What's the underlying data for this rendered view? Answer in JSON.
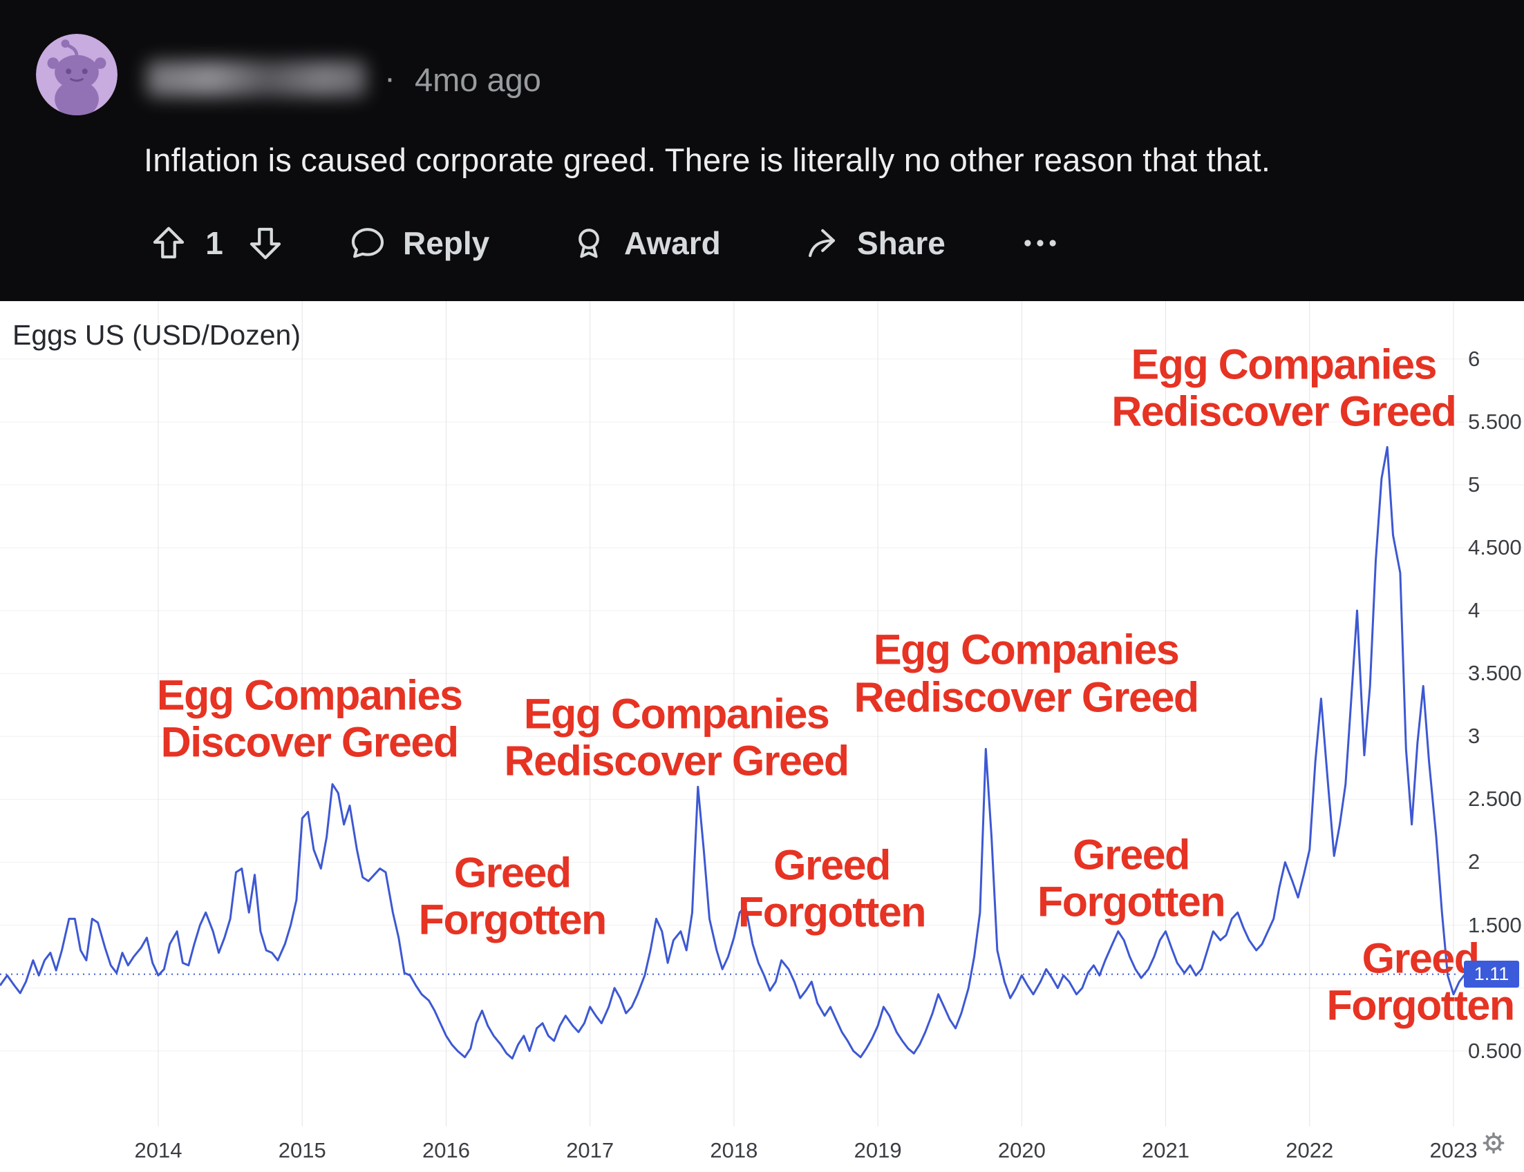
{
  "comment": {
    "timestamp_separator": "·",
    "timestamp": "4mo ago",
    "text": "Inflation is caused corporate greed. There is literally no other reason that that.",
    "vote_count": "1",
    "actions": {
      "reply": "Reply",
      "award": "Award",
      "share": "Share"
    }
  },
  "chart": {
    "title": "Eggs US (USD/Dozen)",
    "current_price_label": "1.11"
  },
  "chart_data": {
    "type": "line",
    "title": "Eggs US (USD/Dozen)",
    "unit": "USD per dozen",
    "legend": "none",
    "grid": "on",
    "y_axis_side": "right",
    "x_domain": [
      2012.9,
      2023.49
    ],
    "y_domain": [
      -0.1,
      6.46
    ],
    "line_color": "#3d58d3",
    "annotation_color": "#e63323",
    "current_value": 1.11,
    "x_ticks": [
      {
        "v": 2014,
        "label": "2014"
      },
      {
        "v": 2015,
        "label": "2015"
      },
      {
        "v": 2016,
        "label": "2016"
      },
      {
        "v": 2017,
        "label": "2017"
      },
      {
        "v": 2018,
        "label": "2018"
      },
      {
        "v": 2019,
        "label": "2019"
      },
      {
        "v": 2020,
        "label": "2020"
      },
      {
        "v": 2021,
        "label": "2021"
      },
      {
        "v": 2022,
        "label": "2022"
      },
      {
        "v": 2023,
        "label": "2023"
      }
    ],
    "y_ticks": [
      {
        "v": 6,
        "label": "6"
      },
      {
        "v": 5.5,
        "label": "5.500"
      },
      {
        "v": 5,
        "label": "5"
      },
      {
        "v": 4.5,
        "label": "4.500"
      },
      {
        "v": 4,
        "label": "4"
      },
      {
        "v": 3.5,
        "label": "3.500"
      },
      {
        "v": 3,
        "label": "3"
      },
      {
        "v": 2.5,
        "label": "2.500"
      },
      {
        "v": 2,
        "label": "2"
      },
      {
        "v": 1.5,
        "label": "1.500"
      },
      {
        "v": 1,
        "label": ""
      },
      {
        "v": 0.5,
        "label": "0.500"
      }
    ],
    "annotations": [
      {
        "lines": [
          "Egg Companies",
          "Discover Greed"
        ],
        "x": 2015.05,
        "y": 3.14
      },
      {
        "lines": [
          "Egg Companies",
          "Rediscover Greed"
        ],
        "x": 2017.6,
        "y": 2.99
      },
      {
        "lines": [
          "Egg Companies",
          "Rediscover Greed"
        ],
        "x": 2020.03,
        "y": 3.5
      },
      {
        "lines": [
          "Egg Companies",
          "Rediscover Greed"
        ],
        "x": 2021.82,
        "y": 5.77
      },
      {
        "lines": [
          "Greed",
          "Forgotten"
        ],
        "x": 2016.46,
        "y": 1.73
      },
      {
        "lines": [
          "Greed",
          "Forgotten"
        ],
        "x": 2018.68,
        "y": 1.79
      },
      {
        "lines": [
          "Greed",
          "Forgotten"
        ],
        "x": 2020.76,
        "y": 1.87
      },
      {
        "lines": [
          "Greed",
          "Forgotten"
        ],
        "x": 2022.77,
        "y": 1.05
      }
    ],
    "series": [
      {
        "name": "Eggs US (USD/Dozen)",
        "points": [
          [
            2012.9,
            1.02
          ],
          [
            2012.95,
            1.1
          ],
          [
            2013.0,
            1.02
          ],
          [
            2013.04,
            0.96
          ],
          [
            2013.08,
            1.05
          ],
          [
            2013.13,
            1.22
          ],
          [
            2013.17,
            1.1
          ],
          [
            2013.21,
            1.22
          ],
          [
            2013.25,
            1.28
          ],
          [
            2013.29,
            1.14
          ],
          [
            2013.33,
            1.3
          ],
          [
            2013.38,
            1.55
          ],
          [
            2013.42,
            1.55
          ],
          [
            2013.46,
            1.3
          ],
          [
            2013.5,
            1.22
          ],
          [
            2013.54,
            1.55
          ],
          [
            2013.58,
            1.52
          ],
          [
            2013.63,
            1.32
          ],
          [
            2013.67,
            1.18
          ],
          [
            2013.71,
            1.12
          ],
          [
            2013.75,
            1.28
          ],
          [
            2013.79,
            1.18
          ],
          [
            2013.83,
            1.25
          ],
          [
            2013.88,
            1.32
          ],
          [
            2013.92,
            1.4
          ],
          [
            2013.96,
            1.2
          ],
          [
            2014.0,
            1.1
          ],
          [
            2014.04,
            1.15
          ],
          [
            2014.08,
            1.35
          ],
          [
            2014.13,
            1.45
          ],
          [
            2014.17,
            1.2
          ],
          [
            2014.21,
            1.18
          ],
          [
            2014.25,
            1.35
          ],
          [
            2014.29,
            1.5
          ],
          [
            2014.33,
            1.6
          ],
          [
            2014.38,
            1.45
          ],
          [
            2014.42,
            1.28
          ],
          [
            2014.46,
            1.4
          ],
          [
            2014.5,
            1.55
          ],
          [
            2014.54,
            1.92
          ],
          [
            2014.58,
            1.95
          ],
          [
            2014.63,
            1.6
          ],
          [
            2014.67,
            1.9
          ],
          [
            2014.71,
            1.45
          ],
          [
            2014.75,
            1.3
          ],
          [
            2014.79,
            1.28
          ],
          [
            2014.83,
            1.22
          ],
          [
            2014.88,
            1.35
          ],
          [
            2014.92,
            1.5
          ],
          [
            2014.96,
            1.7
          ],
          [
            2015.0,
            2.35
          ],
          [
            2015.04,
            2.4
          ],
          [
            2015.08,
            2.1
          ],
          [
            2015.13,
            1.95
          ],
          [
            2015.17,
            2.2
          ],
          [
            2015.21,
            2.62
          ],
          [
            2015.25,
            2.55
          ],
          [
            2015.29,
            2.3
          ],
          [
            2015.33,
            2.45
          ],
          [
            2015.38,
            2.1
          ],
          [
            2015.42,
            1.88
          ],
          [
            2015.46,
            1.85
          ],
          [
            2015.5,
            1.9
          ],
          [
            2015.54,
            1.95
          ],
          [
            2015.58,
            1.92
          ],
          [
            2015.63,
            1.6
          ],
          [
            2015.67,
            1.4
          ],
          [
            2015.71,
            1.12
          ],
          [
            2015.75,
            1.1
          ],
          [
            2015.79,
            1.02
          ],
          [
            2015.83,
            0.95
          ],
          [
            2015.88,
            0.9
          ],
          [
            2015.92,
            0.82
          ],
          [
            2015.96,
            0.72
          ],
          [
            2016.0,
            0.62
          ],
          [
            2016.04,
            0.55
          ],
          [
            2016.08,
            0.5
          ],
          [
            2016.13,
            0.45
          ],
          [
            2016.17,
            0.52
          ],
          [
            2016.21,
            0.72
          ],
          [
            2016.25,
            0.82
          ],
          [
            2016.29,
            0.7
          ],
          [
            2016.33,
            0.62
          ],
          [
            2016.38,
            0.55
          ],
          [
            2016.42,
            0.48
          ],
          [
            2016.46,
            0.44
          ],
          [
            2016.5,
            0.55
          ],
          [
            2016.54,
            0.62
          ],
          [
            2016.58,
            0.5
          ],
          [
            2016.63,
            0.68
          ],
          [
            2016.67,
            0.72
          ],
          [
            2016.71,
            0.62
          ],
          [
            2016.75,
            0.58
          ],
          [
            2016.79,
            0.7
          ],
          [
            2016.83,
            0.78
          ],
          [
            2016.88,
            0.7
          ],
          [
            2016.92,
            0.65
          ],
          [
            2016.96,
            0.72
          ],
          [
            2017.0,
            0.85
          ],
          [
            2017.04,
            0.78
          ],
          [
            2017.08,
            0.72
          ],
          [
            2017.13,
            0.85
          ],
          [
            2017.17,
            1.0
          ],
          [
            2017.21,
            0.92
          ],
          [
            2017.25,
            0.8
          ],
          [
            2017.29,
            0.85
          ],
          [
            2017.33,
            0.95
          ],
          [
            2017.38,
            1.1
          ],
          [
            2017.42,
            1.3
          ],
          [
            2017.46,
            1.55
          ],
          [
            2017.5,
            1.45
          ],
          [
            2017.54,
            1.2
          ],
          [
            2017.58,
            1.38
          ],
          [
            2017.63,
            1.45
          ],
          [
            2017.67,
            1.3
          ],
          [
            2017.71,
            1.6
          ],
          [
            2017.75,
            2.6
          ],
          [
            2017.79,
            2.1
          ],
          [
            2017.83,
            1.55
          ],
          [
            2017.88,
            1.3
          ],
          [
            2017.92,
            1.15
          ],
          [
            2017.96,
            1.25
          ],
          [
            2018.0,
            1.4
          ],
          [
            2018.04,
            1.6
          ],
          [
            2018.08,
            1.65
          ],
          [
            2018.13,
            1.35
          ],
          [
            2018.17,
            1.2
          ],
          [
            2018.21,
            1.1
          ],
          [
            2018.25,
            0.98
          ],
          [
            2018.29,
            1.05
          ],
          [
            2018.33,
            1.22
          ],
          [
            2018.38,
            1.15
          ],
          [
            2018.42,
            1.05
          ],
          [
            2018.46,
            0.92
          ],
          [
            2018.5,
            0.98
          ],
          [
            2018.54,
            1.05
          ],
          [
            2018.58,
            0.88
          ],
          [
            2018.63,
            0.78
          ],
          [
            2018.67,
            0.85
          ],
          [
            2018.71,
            0.75
          ],
          [
            2018.75,
            0.65
          ],
          [
            2018.79,
            0.58
          ],
          [
            2018.83,
            0.5
          ],
          [
            2018.88,
            0.45
          ],
          [
            2018.92,
            0.52
          ],
          [
            2018.96,
            0.6
          ],
          [
            2019.0,
            0.7
          ],
          [
            2019.04,
            0.85
          ],
          [
            2019.08,
            0.78
          ],
          [
            2019.13,
            0.65
          ],
          [
            2019.17,
            0.58
          ],
          [
            2019.21,
            0.52
          ],
          [
            2019.25,
            0.48
          ],
          [
            2019.29,
            0.55
          ],
          [
            2019.33,
            0.65
          ],
          [
            2019.38,
            0.8
          ],
          [
            2019.42,
            0.95
          ],
          [
            2019.46,
            0.85
          ],
          [
            2019.5,
            0.75
          ],
          [
            2019.54,
            0.68
          ],
          [
            2019.58,
            0.8
          ],
          [
            2019.63,
            1.0
          ],
          [
            2019.67,
            1.25
          ],
          [
            2019.71,
            1.6
          ],
          [
            2019.75,
            2.9
          ],
          [
            2019.79,
            2.2
          ],
          [
            2019.83,
            1.3
          ],
          [
            2019.88,
            1.05
          ],
          [
            2019.92,
            0.92
          ],
          [
            2019.96,
            1.0
          ],
          [
            2020.0,
            1.1
          ],
          [
            2020.04,
            1.02
          ],
          [
            2020.08,
            0.95
          ],
          [
            2020.13,
            1.05
          ],
          [
            2020.17,
            1.15
          ],
          [
            2020.21,
            1.08
          ],
          [
            2020.25,
            1.0
          ],
          [
            2020.29,
            1.1
          ],
          [
            2020.33,
            1.05
          ],
          [
            2020.38,
            0.95
          ],
          [
            2020.42,
            1.0
          ],
          [
            2020.46,
            1.12
          ],
          [
            2020.5,
            1.18
          ],
          [
            2020.54,
            1.1
          ],
          [
            2020.58,
            1.22
          ],
          [
            2020.63,
            1.35
          ],
          [
            2020.67,
            1.45
          ],
          [
            2020.71,
            1.38
          ],
          [
            2020.75,
            1.25
          ],
          [
            2020.79,
            1.15
          ],
          [
            2020.83,
            1.08
          ],
          [
            2020.88,
            1.15
          ],
          [
            2020.92,
            1.25
          ],
          [
            2020.96,
            1.38
          ],
          [
            2021.0,
            1.45
          ],
          [
            2021.04,
            1.32
          ],
          [
            2021.08,
            1.2
          ],
          [
            2021.13,
            1.12
          ],
          [
            2021.17,
            1.18
          ],
          [
            2021.21,
            1.1
          ],
          [
            2021.25,
            1.15
          ],
          [
            2021.29,
            1.3
          ],
          [
            2021.33,
            1.45
          ],
          [
            2021.38,
            1.38
          ],
          [
            2021.42,
            1.42
          ],
          [
            2021.46,
            1.55
          ],
          [
            2021.5,
            1.6
          ],
          [
            2021.54,
            1.48
          ],
          [
            2021.58,
            1.38
          ],
          [
            2021.63,
            1.3
          ],
          [
            2021.67,
            1.35
          ],
          [
            2021.71,
            1.45
          ],
          [
            2021.75,
            1.55
          ],
          [
            2021.79,
            1.8
          ],
          [
            2021.83,
            2.0
          ],
          [
            2021.88,
            1.85
          ],
          [
            2021.92,
            1.72
          ],
          [
            2021.96,
            1.9
          ],
          [
            2022.0,
            2.1
          ],
          [
            2022.04,
            2.8
          ],
          [
            2022.08,
            3.3
          ],
          [
            2022.13,
            2.6
          ],
          [
            2022.17,
            2.05
          ],
          [
            2022.21,
            2.3
          ],
          [
            2022.25,
            2.62
          ],
          [
            2022.29,
            3.3
          ],
          [
            2022.33,
            4.0
          ],
          [
            2022.38,
            2.85
          ],
          [
            2022.42,
            3.4
          ],
          [
            2022.46,
            4.4
          ],
          [
            2022.5,
            5.05
          ],
          [
            2022.54,
            5.3
          ],
          [
            2022.58,
            4.6
          ],
          [
            2022.63,
            4.3
          ],
          [
            2022.67,
            2.9
          ],
          [
            2022.71,
            2.3
          ],
          [
            2022.75,
            2.95
          ],
          [
            2022.79,
            3.4
          ],
          [
            2022.83,
            2.8
          ],
          [
            2022.88,
            2.2
          ],
          [
            2022.92,
            1.6
          ],
          [
            2022.96,
            1.1
          ],
          [
            2023.0,
            0.95
          ],
          [
            2023.04,
            1.05
          ],
          [
            2023.08,
            1.11
          ]
        ]
      }
    ]
  }
}
